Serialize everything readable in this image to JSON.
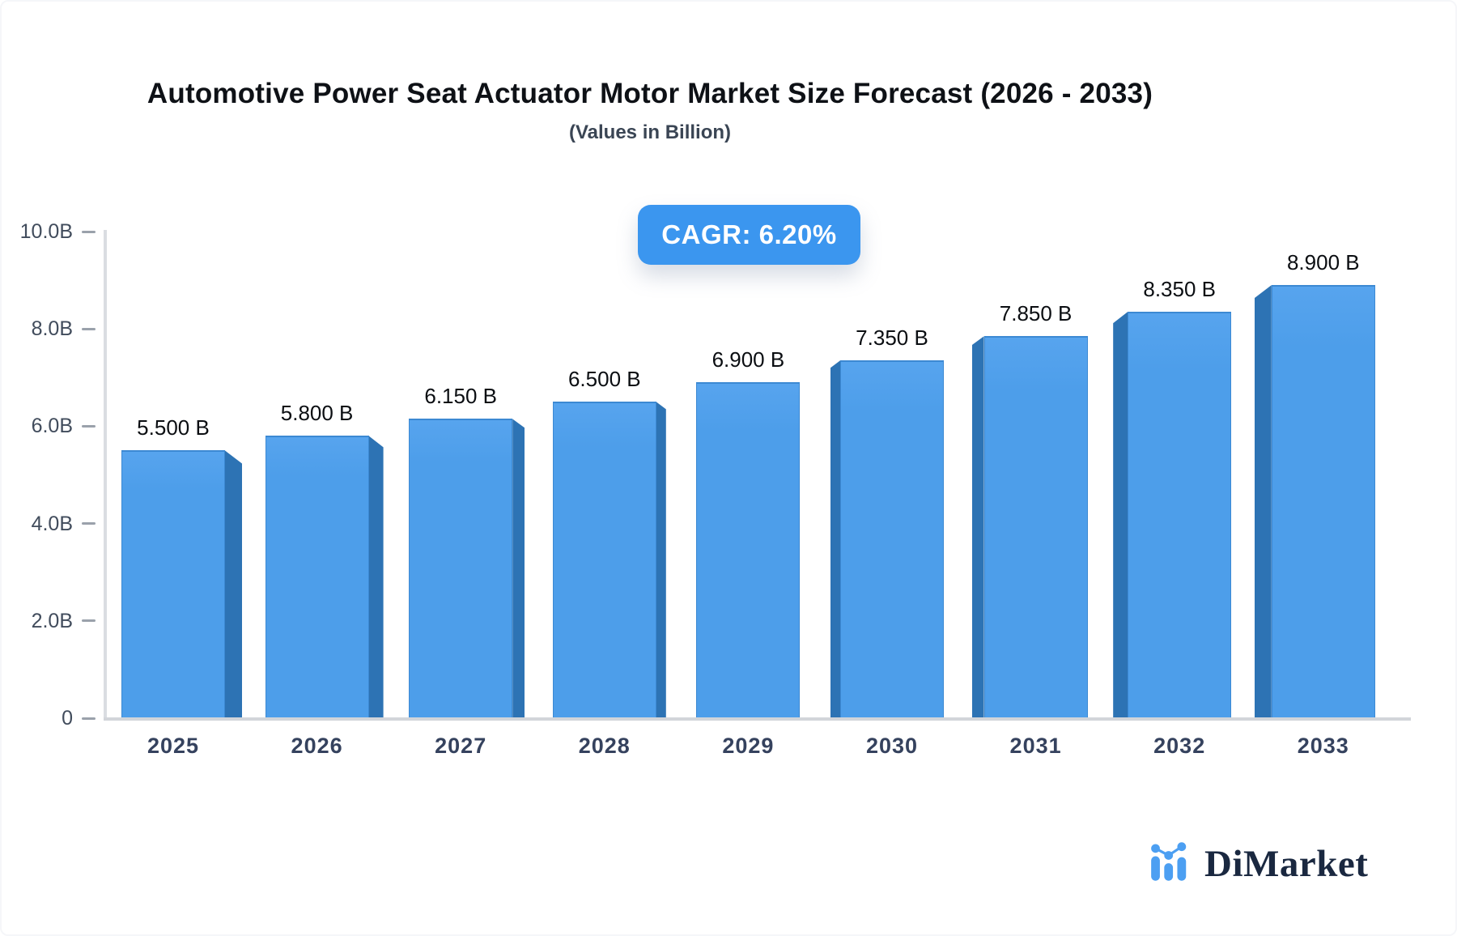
{
  "chart_data": {
    "type": "bar",
    "title": "Automotive Power Seat Actuator Motor Market Size Forecast (2026 - 2033)",
    "subtitle": "(Values in Billion)",
    "cagr_label": "CAGR: 6.20%",
    "categories": [
      "2025",
      "2026",
      "2027",
      "2028",
      "2029",
      "2030",
      "2031",
      "2032",
      "2033"
    ],
    "values": [
      5.5,
      5.8,
      6.15,
      6.5,
      6.9,
      7.35,
      7.85,
      8.35,
      8.9
    ],
    "value_labels": [
      "5.500 B",
      "5.800 B",
      "6.150 B",
      "6.500 B",
      "6.900 B",
      "7.350 B",
      "7.850 B",
      "8.350 B",
      "8.900 B"
    ],
    "yticks": [
      {
        "value": 0,
        "label": "0"
      },
      {
        "value": 2,
        "label": "2.0B"
      },
      {
        "value": 4,
        "label": "4.0B"
      },
      {
        "value": 6,
        "label": "6.0B"
      },
      {
        "value": 8,
        "label": "8.0B"
      },
      {
        "value": 10,
        "label": "10.0B"
      }
    ],
    "ylim": [
      0,
      10
    ],
    "xlabel": "",
    "ylabel": "",
    "grid": "off",
    "legend": "none",
    "colors": {
      "bar_face": "#4d9eea",
      "bar_face_light": "#57a4ee",
      "bar_side": "#2d73b4",
      "bar_edge": "#3c89d3",
      "badge_bg": "#3b96ef",
      "axis_line": "#dadde2",
      "baseline": "#d2d5da",
      "tick": "#9aa1ab",
      "y_label_text": "#414c5c",
      "x_label_text": "#35425e",
      "value_label_text": "#0b0e12",
      "logo_blue": "#4c9ff2",
      "logo_navy": "#1a2840"
    }
  },
  "branding": {
    "logo_text": "DiMarket",
    "logo_icon": "bar-chart-logo-icon"
  }
}
